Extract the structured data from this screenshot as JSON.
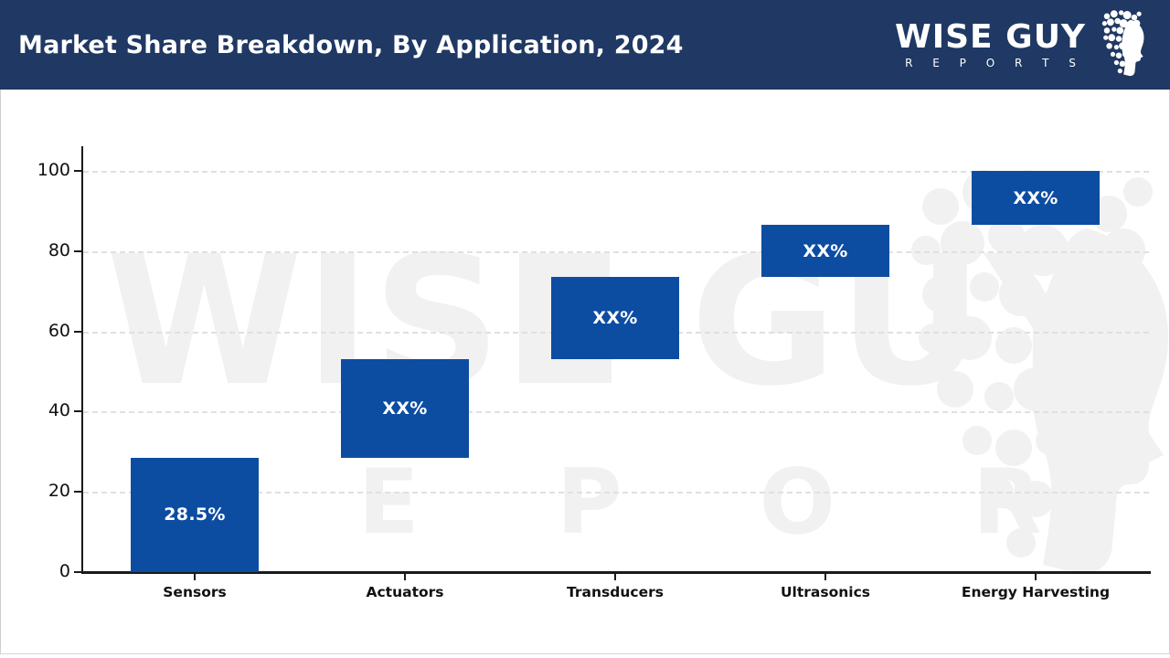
{
  "header": {
    "title": "Market Share Breakdown, By Application, 2024",
    "logo": {
      "line1": "WISE GUY",
      "line2": "R E P O R T S"
    }
  },
  "watermark": {
    "line1": "WISE GUY",
    "line2": "R E P O R T S"
  },
  "colors": {
    "header_bg": "#1f3864",
    "bar": "#0c4da2",
    "grid": "#e0e0e0",
    "axis": "#1a1a1a",
    "watermark": "#f1f1f1",
    "bar_label_text": "#ffffff"
  },
  "chart_data": {
    "type": "bar",
    "subtype": "waterfall",
    "title": "Market Share Breakdown, By Application, 2024",
    "xlabel": "",
    "ylabel": "",
    "ylim": [
      0,
      106
    ],
    "y_ticks": [
      0,
      20,
      40,
      60,
      80,
      100
    ],
    "grid": "horizontal-dashed",
    "legend": "none",
    "categories": [
      "Sensors",
      "Actuators",
      "Transducers",
      "Ultrasonics",
      "Energy Harvesting"
    ],
    "segments": [
      {
        "category": "Sensors",
        "start": 0,
        "end": 28.5,
        "label": "28.5%"
      },
      {
        "category": "Actuators",
        "start": 28.5,
        "end": 53,
        "label": "XX%"
      },
      {
        "category": "Transducers",
        "start": 53,
        "end": 73.5,
        "label": "XX%"
      },
      {
        "category": "Ultrasonics",
        "start": 73.5,
        "end": 86.5,
        "label": "XX%"
      },
      {
        "category": "Energy Harvesting",
        "start": 86.5,
        "end": 100,
        "label": "XX%"
      }
    ]
  }
}
